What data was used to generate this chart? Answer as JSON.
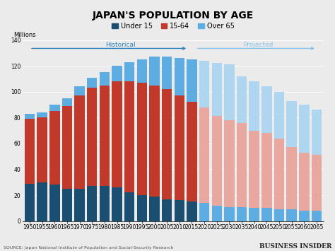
{
  "title": "JAPAN'S POPULATION BY AGE",
  "ylabel": "Millions",
  "source": "SOURCE: Japan National Institute of Population and Social-Security Research",
  "years": [
    1950,
    1955,
    1960,
    1965,
    1970,
    1975,
    1980,
    1985,
    1990,
    1995,
    2000,
    2005,
    2010,
    2015,
    2020,
    2025,
    2030,
    2035,
    2040,
    2045,
    2050,
    2055,
    2060,
    2065
  ],
  "under15": [
    29,
    30,
    28,
    25,
    25,
    27,
    27,
    26,
    22,
    20,
    19,
    17,
    16,
    15,
    14,
    12,
    11,
    11,
    10,
    10,
    9,
    9,
    8,
    8
  ],
  "age1564_hist": [
    50,
    50,
    57,
    64,
    72,
    76,
    78,
    82,
    86,
    87,
    86,
    85,
    81,
    77,
    0,
    0,
    0,
    0,
    0,
    0,
    0,
    0,
    0,
    0
  ],
  "age1564_proj": [
    0,
    0,
    0,
    0,
    0,
    0,
    0,
    0,
    0,
    0,
    0,
    0,
    0,
    0,
    74,
    69,
    67,
    65,
    60,
    58,
    55,
    48,
    45,
    43
  ],
  "over65_hist": [
    4,
    4,
    5,
    6,
    7,
    8,
    10,
    12,
    15,
    18,
    22,
    25,
    29,
    33,
    0,
    0,
    0,
    0,
    0,
    0,
    0,
    0,
    0,
    0
  ],
  "over65_proj": [
    0,
    0,
    0,
    0,
    0,
    0,
    0,
    0,
    0,
    0,
    0,
    0,
    0,
    0,
    36,
    41,
    43,
    36,
    38,
    36,
    36,
    36,
    37,
    35
  ],
  "under15_hist_color": "#1b4f72",
  "under15_proj_color": "#5dade2",
  "age1564_hist_color": "#c0392b",
  "age1564_proj_color": "#e8a8a0",
  "over65_hist_color": "#5dade2",
  "over65_proj_color": "#aed6f1",
  "historical_boundary": 13,
  "ylim": [
    0,
    140
  ],
  "yticks": [
    0,
    20,
    40,
    60,
    80,
    100,
    120,
    140
  ],
  "background_color": "#ebebeb",
  "title_fontsize": 10,
  "tick_fontsize": 5.5,
  "legend_fontsize": 7,
  "arrow_hist_color": "#2980b9",
  "arrow_proj_color": "#85c1e9"
}
